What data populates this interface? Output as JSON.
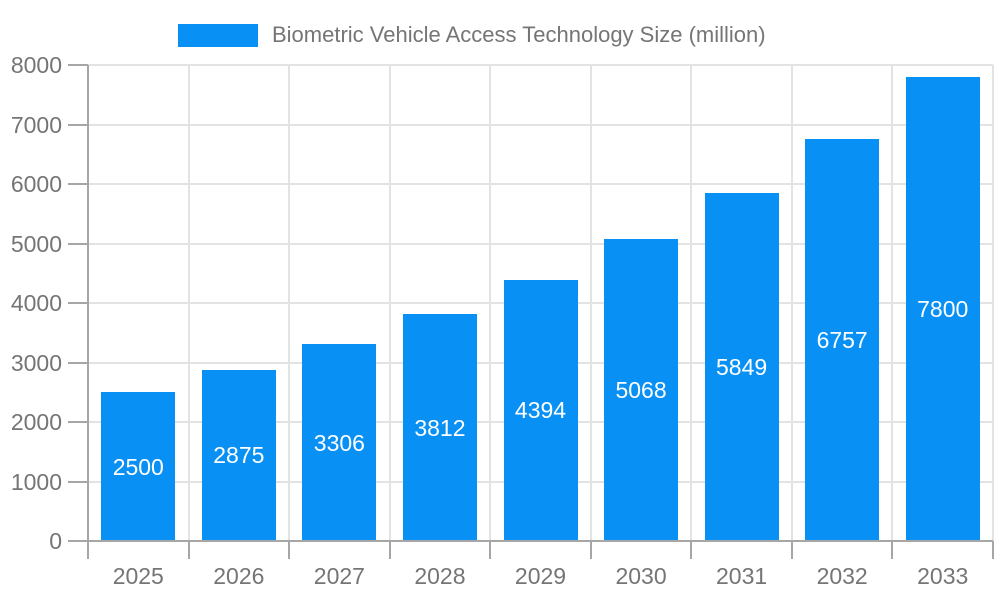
{
  "chart_data": {
    "type": "bar",
    "title": "Biometric Vehicle Access Technology Size (million)",
    "categories": [
      "2025",
      "2026",
      "2027",
      "2028",
      "2029",
      "2030",
      "2031",
      "2032",
      "2033"
    ],
    "values": [
      2500,
      2875,
      3306,
      3812,
      4394,
      5068,
      5849,
      6757,
      7800
    ],
    "xlabel": "",
    "ylabel": "",
    "ylim": [
      0,
      8000
    ],
    "ytick_step": 1000,
    "yticks": [
      0,
      1000,
      2000,
      3000,
      4000,
      5000,
      6000,
      7000,
      8000
    ],
    "grid": true,
    "legend_position": "top-center",
    "bar_label_position": "inside-center",
    "colors": {
      "bar": "#0990f5",
      "grid": "#e3e3e3",
      "axis": "#a6a6a6",
      "tick_label": "#757575",
      "legend_text": "#757575",
      "bar_label": "#ffffff",
      "background": "#ffffff"
    }
  }
}
